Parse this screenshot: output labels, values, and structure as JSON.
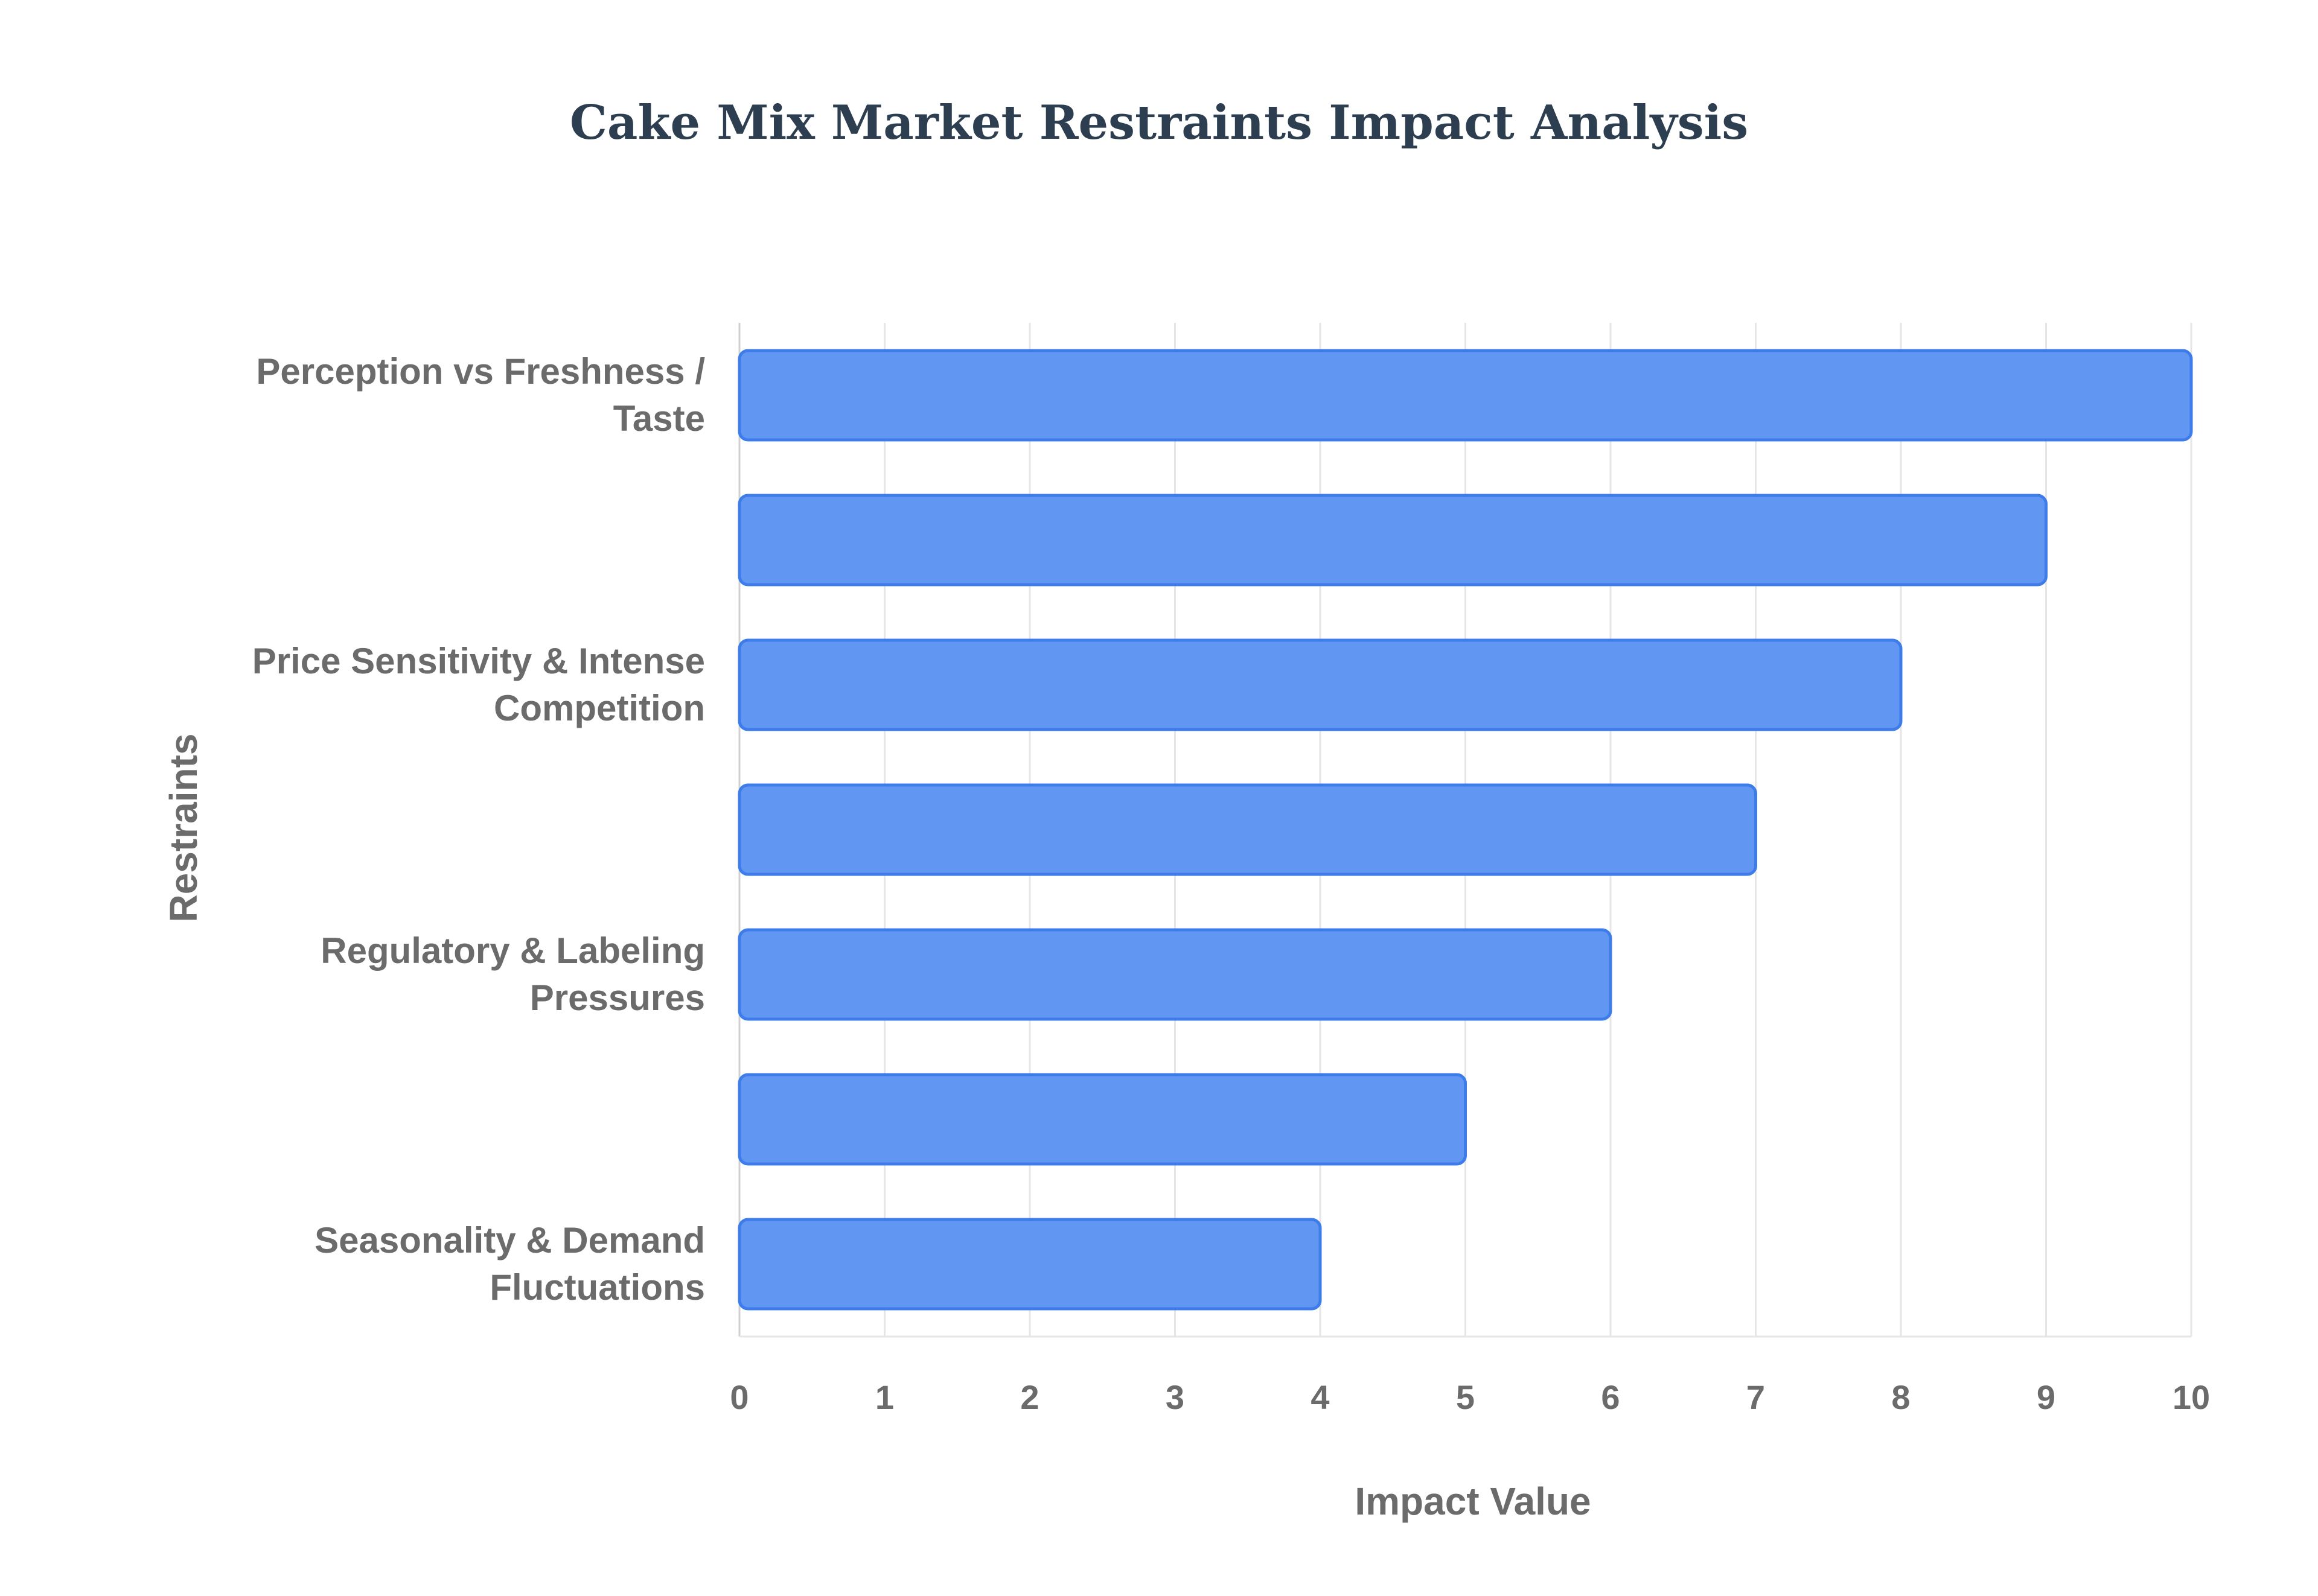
{
  "colors": {
    "bar_fill": "#6197f2",
    "bar_stroke": "#3e7de9",
    "grid": "#e6e6e6",
    "axis_line": "#d0d0d0",
    "label_text": "#6b6b6b",
    "title_text": "#2c3e50"
  },
  "chart_data": {
    "type": "bar",
    "orientation": "horizontal",
    "title": "Cake Mix Market Restraints Impact Analysis",
    "xlabel": "Impact Value",
    "ylabel": "Restraints",
    "xlim": [
      0,
      10
    ],
    "x_ticks": [
      "0",
      "1",
      "2",
      "3",
      "4",
      "5",
      "6",
      "7",
      "8",
      "9",
      "10"
    ],
    "grid": true,
    "legend": "none",
    "categories": [
      {
        "lines": [
          "Perception vs Freshness /",
          "Taste"
        ]
      },
      {
        "lines": []
      },
      {
        "lines": [
          "Price Sensitivity & Intense",
          "Competition"
        ]
      },
      {
        "lines": []
      },
      {
        "lines": [
          "Regulatory & Labeling",
          "Pressures"
        ]
      },
      {
        "lines": []
      },
      {
        "lines": [
          "Seasonality & Demand",
          "Fluctuations"
        ]
      }
    ],
    "values": [
      10,
      9,
      8,
      7,
      6,
      5,
      4
    ]
  }
}
